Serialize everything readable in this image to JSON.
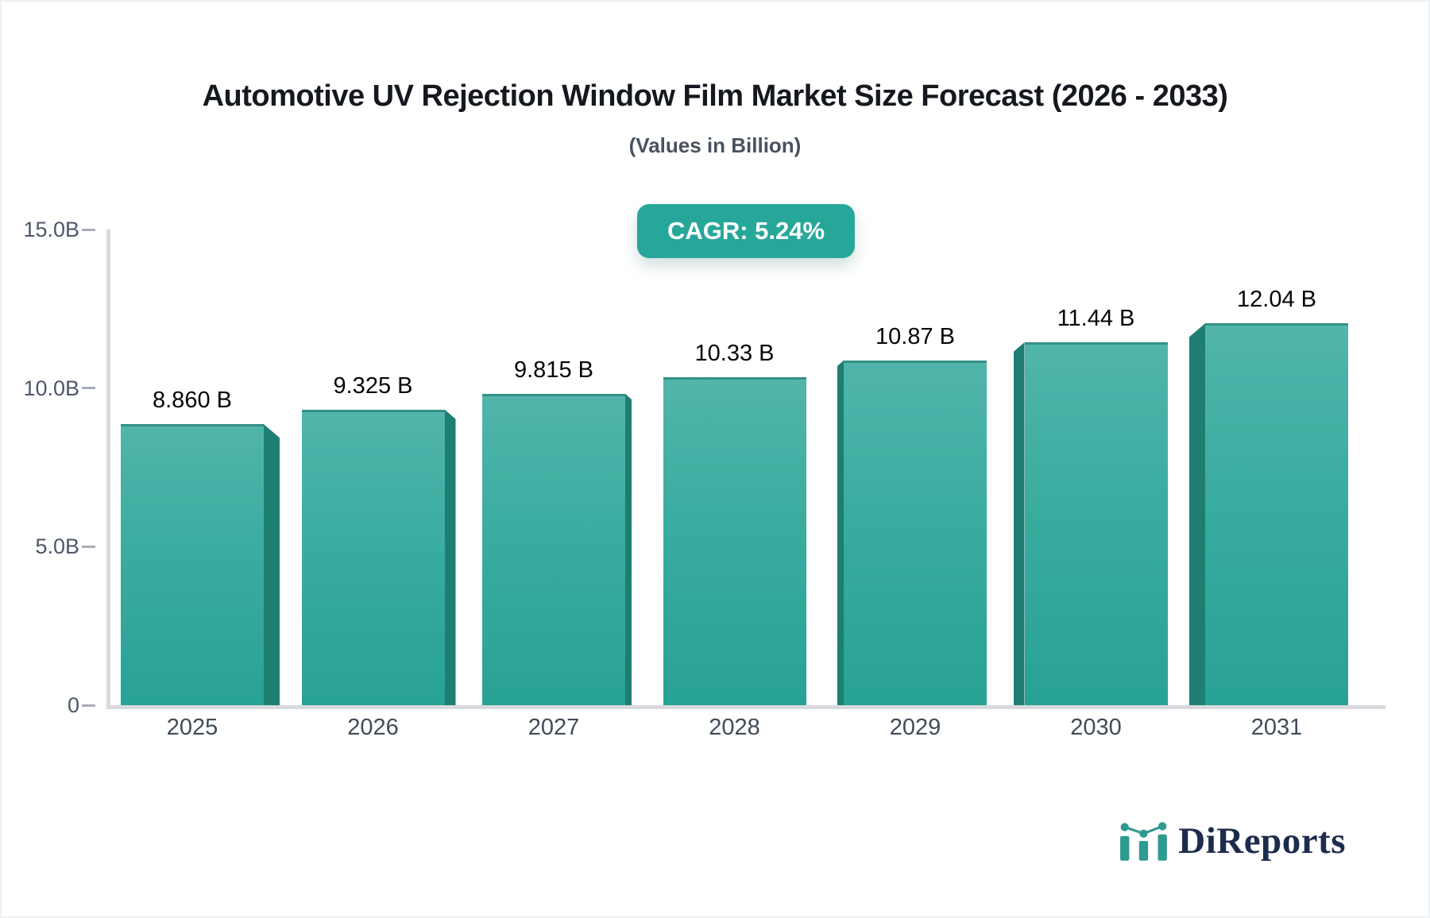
{
  "header": {
    "title": "Automotive UV Rejection Window Film Market Size Forecast (2026 - 2033)",
    "subtitle": "(Values in Billion)",
    "cagr_badge": "CAGR: 5.24%"
  },
  "chart_data": {
    "type": "bar",
    "title": "Automotive UV Rejection Window Film Market Size Forecast (2026 - 2033)",
    "subtitle": "(Values in Billion)",
    "annotation": "CAGR: 5.24%",
    "categories": [
      "2025",
      "2026",
      "2027",
      "2028",
      "2029",
      "2030",
      "2031"
    ],
    "values": [
      8.86,
      9.325,
      9.815,
      10.33,
      10.87,
      11.44,
      12.04
    ],
    "value_labels": [
      "8.860 B",
      "9.325 B",
      "9.815 B",
      "10.33 B",
      "10.87 B",
      "11.44 B",
      "12.04 B"
    ],
    "unit": "Billion",
    "xlabel": "",
    "ylabel": "",
    "ylim": [
      0,
      15
    ],
    "yticks": [
      {
        "label": "15.0B",
        "value": 15
      },
      {
        "label": "10.0B",
        "value": 10
      },
      {
        "label": "5.0B",
        "value": 5
      },
      {
        "label": "0",
        "value": 0
      }
    ],
    "grid": false,
    "legend": false,
    "bar_style": "3d-perspective",
    "bar_colors": {
      "face_top": "#52b5ab",
      "face_bottom": "#28a295",
      "side": "#1e7e72"
    }
  },
  "branding": {
    "logo_text": "DiReports"
  },
  "colors": {
    "accent_teal": "#27a79a",
    "axis_gray": "#d7dade",
    "tick_gray": "#a7adb7",
    "label_slate": "#4d5769",
    "logo_navy": "#1d2c4d",
    "logo_teal": "#2f9a90"
  }
}
